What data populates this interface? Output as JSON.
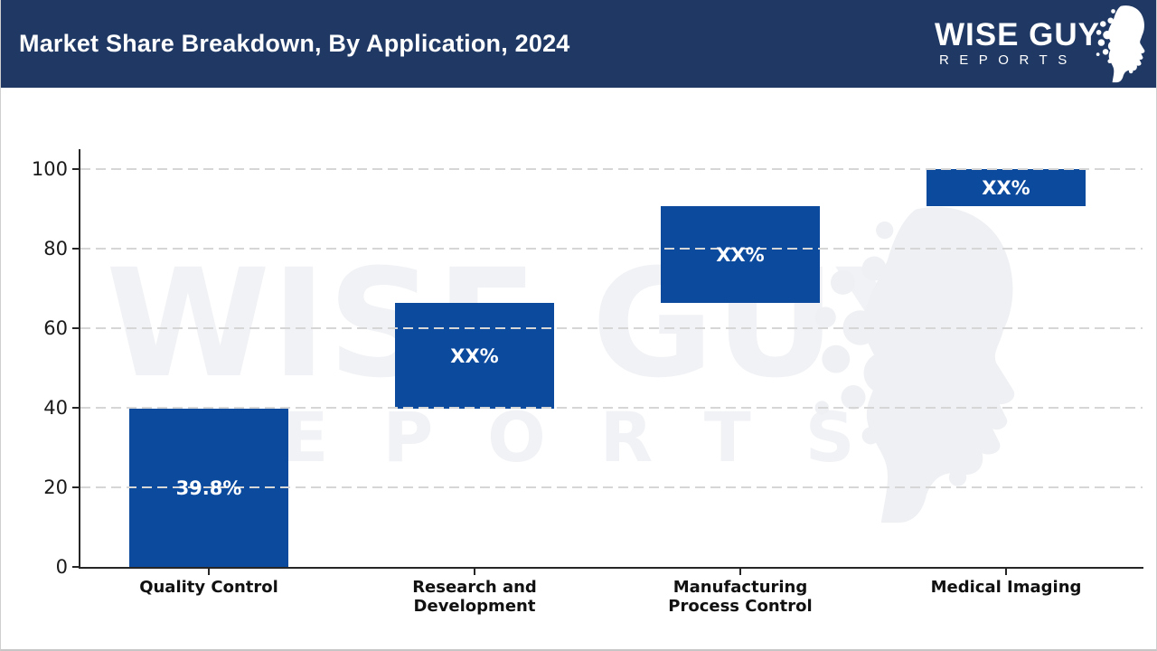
{
  "header": {
    "title": "Market Share Breakdown, By Application, 2024",
    "logo": {
      "line1": "WISE GUY",
      "line2": "REPORTS",
      "icon": "dotted-head-profile"
    }
  },
  "watermark": {
    "line1": "WISE GUY",
    "line2": "REPORTS",
    "icon": "dotted-head-profile"
  },
  "colors": {
    "header_bg": "#1F3864",
    "bar": "#0c4a9e",
    "bar_label": "#ffffff",
    "gridline": "#d6d6d6",
    "axis": "#262626",
    "watermark": "#f1f2f5",
    "page_border": "#cfcfcf"
  },
  "chart_data": {
    "type": "bar",
    "subtype": "waterfall-stacked-percentage",
    "title": "Market Share Breakdown, By Application, 2024",
    "xlabel": "",
    "ylabel": "",
    "y_ticks": [
      0,
      20,
      40,
      60,
      80,
      100
    ],
    "ylim": [
      0,
      105
    ],
    "grid": "horizontal-dashed",
    "legend": "none",
    "bar_color": "#0c4a9e",
    "categories": [
      "Quality Control",
      "Research and\nDevelopment",
      "Manufacturing\nProcess Control",
      "Medical Imaging"
    ],
    "segments": [
      {
        "category": "Quality Control",
        "start": 0,
        "end": 39.8,
        "value": 39.8,
        "label": "39.8%"
      },
      {
        "category": "Research and\nDevelopment",
        "start": 39.8,
        "end": 66.3,
        "value": 26.5,
        "label": "XX%"
      },
      {
        "category": "Manufacturing\nProcess Control",
        "start": 66.3,
        "end": 90.6,
        "value": 24.3,
        "label": "XX%"
      },
      {
        "category": "Medical Imaging",
        "start": 90.6,
        "end": 100,
        "value": 9.4,
        "label": "XX%"
      }
    ]
  }
}
